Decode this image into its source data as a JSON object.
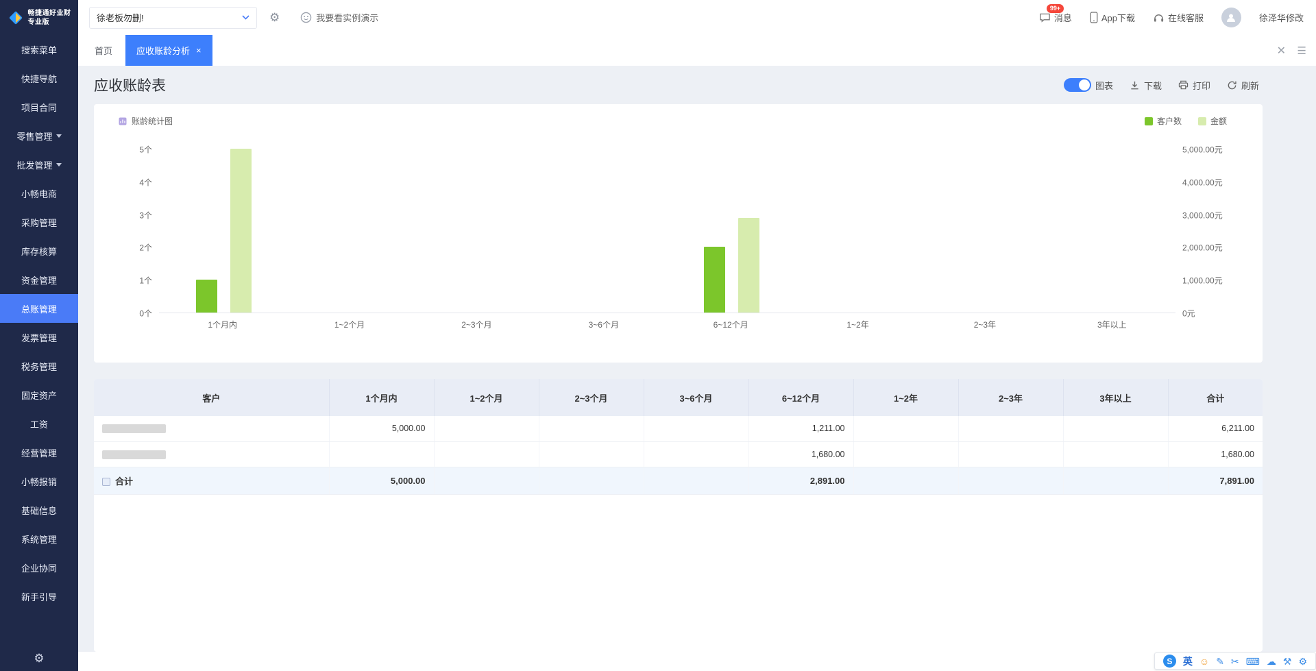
{
  "sidebar": {
    "logo_title": "畅捷通好业财",
    "logo_subtitle": "专业版",
    "items": [
      {
        "label": "搜索菜单",
        "active": false,
        "arrow": false
      },
      {
        "label": "快捷导航",
        "active": false,
        "arrow": false
      },
      {
        "label": "项目合同",
        "active": false,
        "arrow": false
      },
      {
        "label": "零售管理",
        "active": false,
        "arrow": true
      },
      {
        "label": "批发管理",
        "active": false,
        "arrow": true
      },
      {
        "label": "小畅电商",
        "active": false,
        "arrow": false
      },
      {
        "label": "采购管理",
        "active": false,
        "arrow": false
      },
      {
        "label": "库存核算",
        "active": false,
        "arrow": false
      },
      {
        "label": "资金管理",
        "active": false,
        "arrow": false
      },
      {
        "label": "总账管理",
        "active": true,
        "arrow": false
      },
      {
        "label": "发票管理",
        "active": false,
        "arrow": false
      },
      {
        "label": "税务管理",
        "active": false,
        "arrow": false
      },
      {
        "label": "固定资产",
        "active": false,
        "arrow": false
      },
      {
        "label": "工资",
        "active": false,
        "arrow": false
      },
      {
        "label": "经营管理",
        "active": false,
        "arrow": false
      },
      {
        "label": "小畅报销",
        "active": false,
        "arrow": false
      },
      {
        "label": "基础信息",
        "active": false,
        "arrow": false
      },
      {
        "label": "系统管理",
        "active": false,
        "arrow": false
      },
      {
        "label": "企业协同",
        "active": false,
        "arrow": false
      },
      {
        "label": "新手引导",
        "active": false,
        "arrow": false
      }
    ]
  },
  "topbar": {
    "company_select": "徐老板勿删!",
    "demo_link": "我要看实例演示",
    "messages_label": "消息",
    "messages_badge": "99+",
    "app_download_label": "App下载",
    "support_label": "在线客服",
    "username": "徐泽华修改"
  },
  "tabs": [
    {
      "label": "首页",
      "active": false,
      "closable": false
    },
    {
      "label": "应收账龄分析",
      "active": true,
      "closable": true
    }
  ],
  "page": {
    "title": "应收账龄表",
    "toggle_label": "图表",
    "download_label": "下载",
    "print_label": "打印",
    "refresh_label": "刷新"
  },
  "chart_data": {
    "type": "bar",
    "title": "账龄统计图",
    "categories": [
      "1个月内",
      "1~2个月",
      "2~3个月",
      "3~6个月",
      "6~12个月",
      "1~2年",
      "2~3年",
      "3年以上"
    ],
    "series": [
      {
        "name": "客户数",
        "axis": "left",
        "color": "#7cc62b",
        "values": [
          1,
          0,
          0,
          0,
          2,
          0,
          0,
          0
        ]
      },
      {
        "name": "金额",
        "axis": "right",
        "color": "#d7ecae",
        "values": [
          5000,
          0,
          0,
          0,
          2891,
          0,
          0,
          0
        ]
      }
    ],
    "left_axis": {
      "max": 5,
      "ticks": [
        "0个",
        "1个",
        "2个",
        "3个",
        "4个",
        "5个"
      ]
    },
    "right_axis": {
      "max": 5000,
      "ticks": [
        "0元",
        "1,000.00元",
        "2,000.00元",
        "3,000.00元",
        "4,000.00元",
        "5,000.00元"
      ]
    },
    "legend_position": "top-right",
    "grid": false
  },
  "table": {
    "headers": [
      "客户",
      "1个月内",
      "1~2个月",
      "2~3个月",
      "3~6个月",
      "6~12个月",
      "1~2年",
      "2~3年",
      "3年以上",
      "合计"
    ],
    "rows": [
      {
        "customer_redacted": true,
        "values": [
          "5,000.00",
          "",
          "",
          "",
          "1,211.00",
          "",
          "",
          "",
          "6,211.00"
        ]
      },
      {
        "customer_redacted": true,
        "values": [
          "",
          "",
          "",
          "",
          "1,680.00",
          "",
          "",
          "",
          "1,680.00"
        ]
      }
    ],
    "total_row": {
      "label": "合计",
      "values": [
        "5,000.00",
        "",
        "",
        "",
        "2,891.00",
        "",
        "",
        "",
        "7,891.00"
      ]
    }
  },
  "ime_bar": {
    "logo": "S",
    "lang": "英",
    "icons": [
      "emoji-icon",
      "pen-icon",
      "scissors-icon",
      "keyboard-icon",
      "cloud-icon",
      "toolbox-icon",
      "settings-icon"
    ]
  },
  "icons": {
    "gear": "⚙",
    "close": "✕",
    "hamburger": "☰",
    "tab_close": "×"
  }
}
